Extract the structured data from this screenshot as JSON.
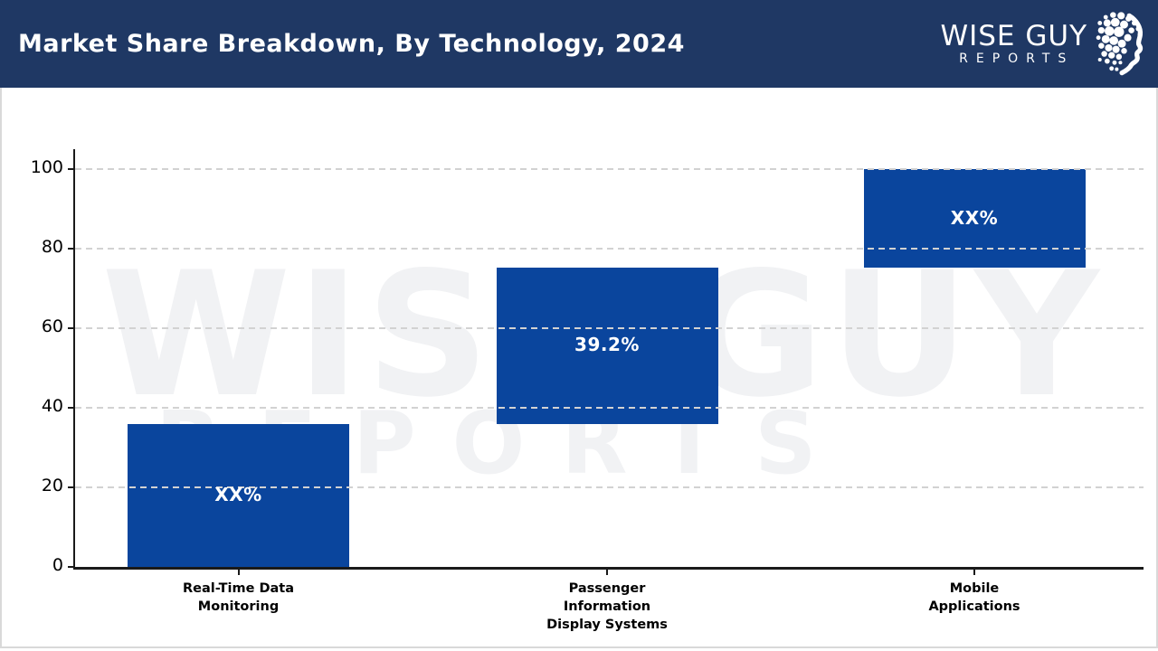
{
  "header": {
    "title": "Market Share Breakdown, By Technology, 2024",
    "logo": {
      "line1": "WISE GUY",
      "line2": "REPORTS",
      "face_icon": "dotted-face-profile"
    }
  },
  "watermark": {
    "line1": "WISE GUY",
    "line2": "REPORTS"
  },
  "colors": {
    "header_bg": "#1f3864",
    "bar": "#0a459d",
    "bar_label": "#ffffff",
    "gridline": "#d2d2d2",
    "axis": "#1a1a1a",
    "watermark": "#f1f2f4",
    "card_border": "#d9d9d9",
    "title_text": "#ffffff",
    "tick_text": "#000000"
  },
  "chart_data": {
    "type": "bar",
    "subtype": "waterfall",
    "title": "Market Share Breakdown, By Technology, 2024",
    "xlabel": "",
    "ylabel": "",
    "ylim": [
      0,
      105
    ],
    "yticks": [
      0,
      20,
      40,
      60,
      80,
      100
    ],
    "grid": "horizontal-dashed",
    "legend": "none",
    "categories": [
      "Real-Time Data Monitoring",
      "Passenger Information Display Systems",
      "Mobile Applications"
    ],
    "bars": [
      {
        "category": "Real-Time Data Monitoring",
        "lines": [
          "Real-Time Data",
          "Monitoring"
        ],
        "label": "XX%",
        "start": 0,
        "end": 36
      },
      {
        "category": "Passenger Information Display Systems",
        "lines": [
          "Passenger",
          "Information",
          "Display Systems"
        ],
        "label": "39.2%",
        "start": 36,
        "end": 75.2
      },
      {
        "category": "Mobile Applications",
        "lines": [
          "Mobile",
          "Applications"
        ],
        "label": "XX%",
        "start": 75.2,
        "end": 100
      }
    ]
  }
}
